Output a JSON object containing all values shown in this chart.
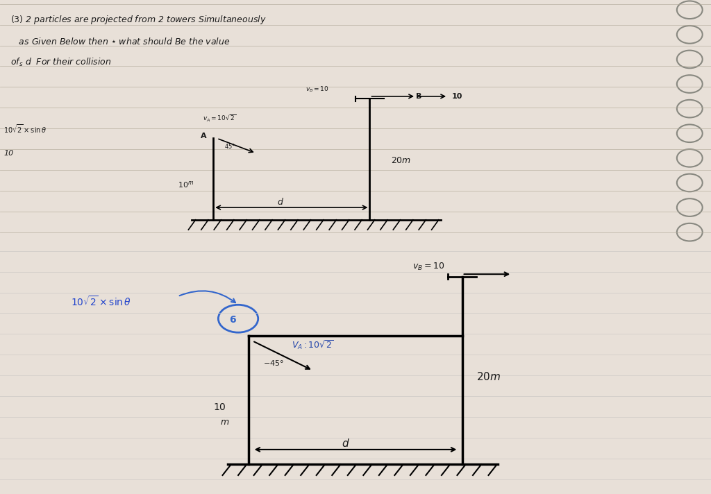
{
  "bg_color_top": "#d8d0c8",
  "bg_color_bottom": "#f0eeeb",
  "line_color": "#c8c0b8",
  "title_text1": "(3) 2 particles are projected from 2 towers Simultaneously",
  "title_text2": "   as Given Below then ★ what should Be the value",
  "title_text3": "of d  For their collision",
  "fig_width": 10.24,
  "fig_height": 7.12
}
